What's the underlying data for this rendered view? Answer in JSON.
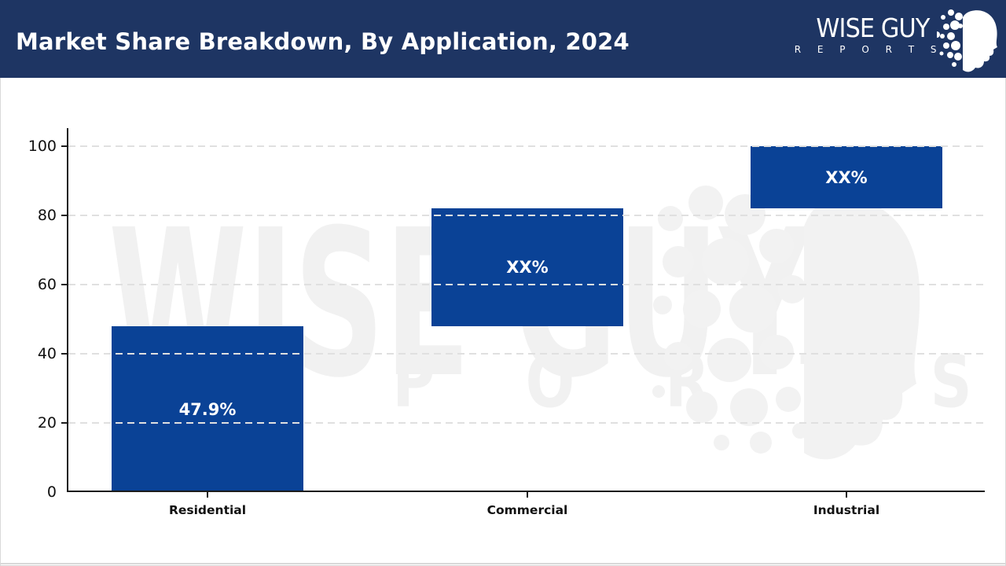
{
  "header": {
    "title": "Market Share Breakdown, By Application, 2024",
    "logo": {
      "wordmark": "WISE GUY",
      "subtext": "R E P O R T S"
    }
  },
  "watermark": {
    "wordmark": "WISE GUY",
    "subtext": "R E P O R T S"
  },
  "chart_data": {
    "type": "bar",
    "variant": "waterfall-breakdown-floating-bars",
    "title": "Market Share Breakdown, By Application, 2024",
    "categories": [
      "Residential",
      "Commercial",
      "Industrial"
    ],
    "segments": [
      {
        "category": "Residential",
        "start": 0,
        "end": 47.9,
        "value_label": "47.9%"
      },
      {
        "category": "Commercial",
        "start": 47.9,
        "end": 82,
        "value_label": "XX%"
      },
      {
        "category": "Industrial",
        "start": 82,
        "end": 100,
        "value_label": "XX%"
      }
    ],
    "yticks": [
      "0",
      "20",
      "40",
      "60",
      "80",
      "100"
    ],
    "ylim": [
      0,
      105
    ],
    "xlabel": "",
    "ylabel": "",
    "grid": "dashed-horizontal",
    "legend": "none"
  },
  "colors": {
    "header_bg": "#1e3563",
    "bar": "#0a4296",
    "bar_label": "#ffffff",
    "grid": "#e0e0e0",
    "axis": "#1c1c1c",
    "watermark": "#f1f1f1",
    "title_text": "#ffffff"
  }
}
